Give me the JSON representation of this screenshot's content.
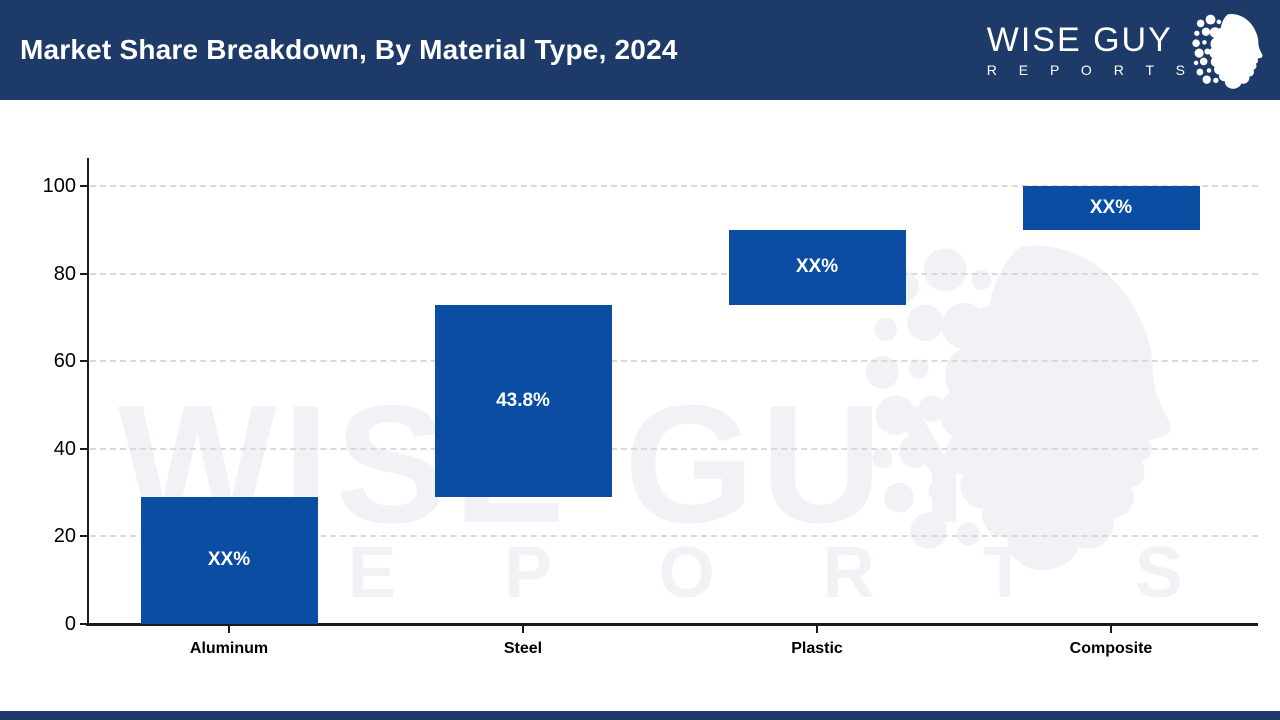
{
  "header": {
    "title": "Market Share Breakdown, By Material Type, 2024",
    "logo": {
      "line1": "WISE GUY",
      "line2": "R E P O R T S"
    }
  },
  "watermark": {
    "line1": "WISE GUY",
    "line2": "R E P O R T S"
  },
  "chart_data": {
    "type": "bar",
    "variant": "floating-segment-waterfall",
    "title": "Market Share Breakdown, By Material Type, 2024",
    "categories": [
      "Aluminum",
      "Steel",
      "Plastic",
      "Composite"
    ],
    "segments": [
      {
        "category": "Aluminum",
        "start": 0,
        "end": 29,
        "value": 29,
        "label": "XX%"
      },
      {
        "category": "Steel",
        "start": 29,
        "end": 72.8,
        "value": 43.8,
        "label": "43.8%"
      },
      {
        "category": "Plastic",
        "start": 72.8,
        "end": 90,
        "value": 17.2,
        "label": "XX%"
      },
      {
        "category": "Composite",
        "start": 90,
        "end": 100,
        "value": 10,
        "label": "XX%"
      }
    ],
    "xlabel": "",
    "ylabel": "",
    "ylim": [
      0,
      100
    ],
    "yticks": [
      0,
      20,
      40,
      60,
      80,
      100
    ],
    "grid": {
      "horizontal": true,
      "style": "dashed"
    },
    "legend": null
  },
  "colors": {
    "header_bg": "#1e3a68",
    "footer_bg": "#1e3a68",
    "bar": "#0b4da2",
    "grid": "#d9d9d9",
    "axis": "#1a1a1a",
    "text": "#000000",
    "bar_label": "#ffffff",
    "watermark": "#f1f2f5"
  }
}
